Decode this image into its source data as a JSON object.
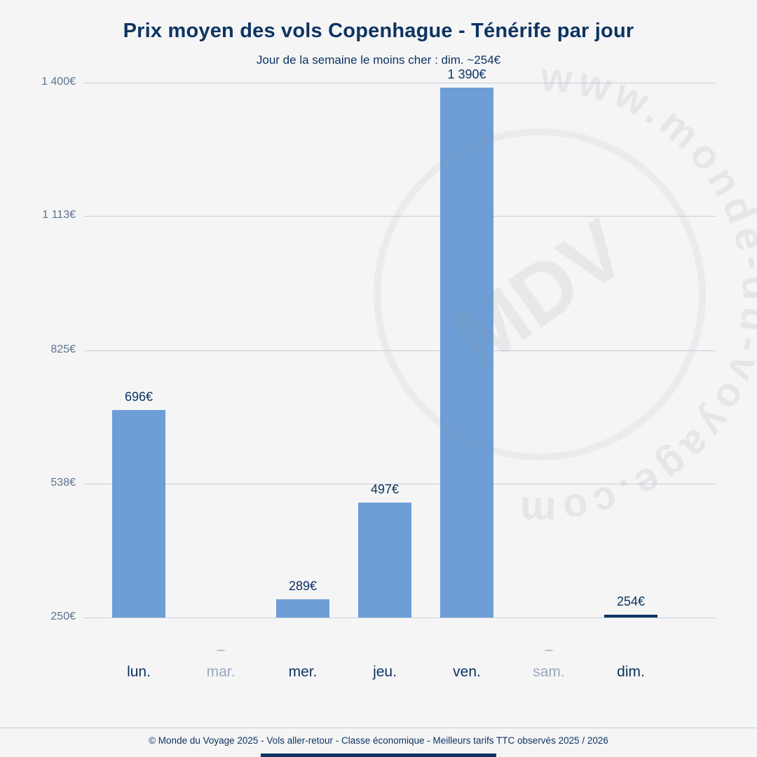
{
  "chart_data": {
    "type": "bar",
    "title": "Prix moyen des vols Copenhague - Ténérife par jour",
    "subtitle": "Jour de la semaine le moins cher : dim. ~254€",
    "categories": [
      "lun.",
      "mar.",
      "mer.",
      "jeu.",
      "ven.",
      "sam.",
      "dim."
    ],
    "values": [
      696,
      null,
      289,
      497,
      1390,
      null,
      254
    ],
    "value_labels": [
      "696€",
      "",
      "289€",
      "497€",
      "1 390€",
      "",
      "254€"
    ],
    "no_data_marker": "–",
    "xlabel": "",
    "ylabel": "",
    "ylim": [
      250,
      1400
    ],
    "yticks": [
      {
        "value": 1400,
        "label": "1 400€"
      },
      {
        "value": 1113,
        "label": "1 113€"
      },
      {
        "value": 825,
        "label": "825€"
      },
      {
        "value": 538,
        "label": "538€"
      },
      {
        "value": 250,
        "label": "250€"
      }
    ],
    "grid": true,
    "legend": false,
    "bar_color": "#6d9ed6",
    "highlight_index": 6,
    "highlight_color": "#0d3461"
  },
  "watermark": {
    "ring_text": "www.monde-du-voyage.com",
    "center_text": "MDV"
  },
  "footer": {
    "text": "© Monde du Voyage 2025 - Vols aller-retour - Classe économique - Meilleurs tarifs TTC observés 2025 / 2026"
  }
}
